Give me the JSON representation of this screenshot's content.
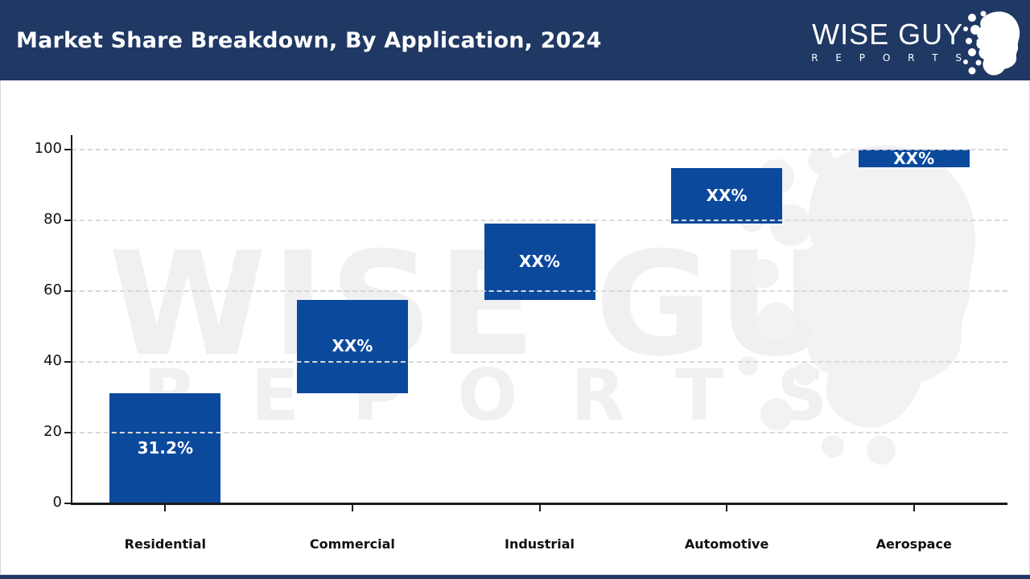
{
  "header": {
    "title": "Market Share Breakdown, By Application, 2024",
    "logo": {
      "line1": "WISE GUY",
      "line2": "R E P O R T S"
    }
  },
  "watermark": {
    "line1": "WISE GUY",
    "line2": "REPORTS"
  },
  "chart_data": {
    "type": "bar",
    "subtype": "waterfall",
    "title": "Market Share Breakdown, By Application, 2024",
    "xlabel": "",
    "ylabel": "",
    "categories": [
      "Residential",
      "Commercial",
      "Industrial",
      "Automotive",
      "Aerospace"
    ],
    "segments": [
      {
        "category": "Residential",
        "start": 0,
        "end": 31.2,
        "label": "31.2%"
      },
      {
        "category": "Commercial",
        "start": 31.2,
        "end": 57.5,
        "label": "XX%"
      },
      {
        "category": "Industrial",
        "start": 57.5,
        "end": 79.1,
        "label": "XX%"
      },
      {
        "category": "Automotive",
        "start": 79.1,
        "end": 94.8,
        "label": "XX%"
      },
      {
        "category": "Aerospace",
        "start": 95.0,
        "end": 100,
        "label": "XX%"
      }
    ],
    "yticks": [
      "0",
      "20",
      "40",
      "60",
      "80",
      "100"
    ],
    "ytick_values": [
      0,
      20,
      40,
      60,
      80,
      100
    ],
    "ylim": [
      0,
      105
    ],
    "grid": "horizontal dashed, drawn over bars",
    "legend": "none"
  },
  "colors": {
    "header_bg": "#1f3864",
    "footer_bg": "#1f3864",
    "bar": "#0b499d",
    "bar_label": "#ffffff",
    "grid": "#d9d9d9",
    "axis": "#1a1a1a",
    "watermark": "#f0f0f3",
    "frame_border": "#d9d9d9"
  }
}
